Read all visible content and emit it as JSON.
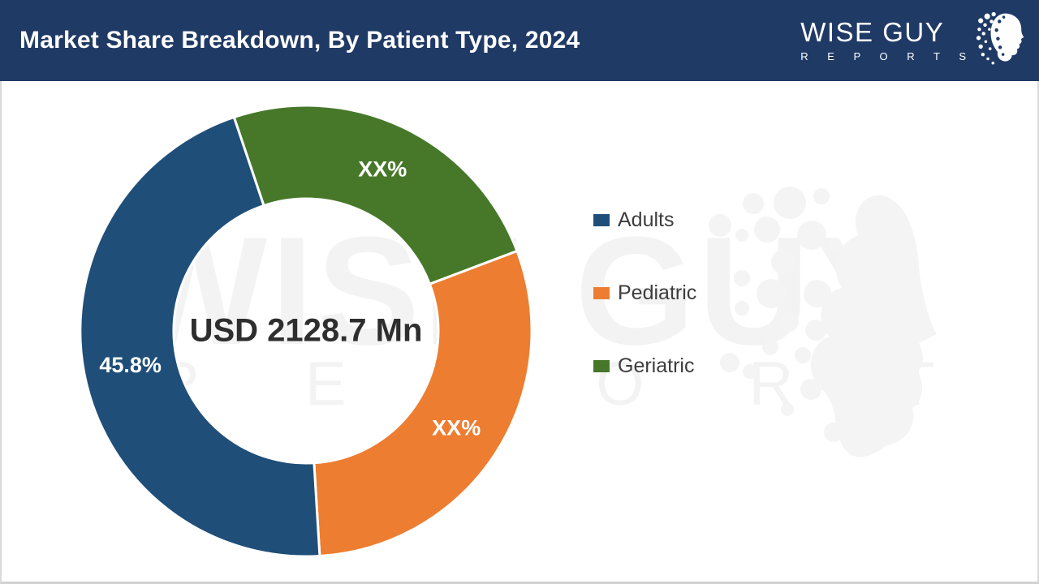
{
  "header": {
    "title": "Market Share Breakdown, By Patient Type, 2024",
    "background": "#203A66",
    "logo": {
      "line1": "WISE GUY",
      "line2": "R E P O R T S"
    }
  },
  "watermark": {
    "line1": "WISE GUY",
    "line2": "R E P O R T S"
  },
  "chart_data": {
    "type": "pie",
    "subtype": "donut",
    "title": "Market Share Breakdown, By Patient Type, 2024",
    "center_label": "USD 2128.7 Mn",
    "start_angle_deg": 108.6,
    "direction": "clockwise",
    "outer_radius_px": 278,
    "inner_radius_px": 163,
    "slices": [
      {
        "label": "Geriatric",
        "value_pct": 24.4,
        "display_label": "XX%",
        "color": "#47782A"
      },
      {
        "label": "Pediatric",
        "value_pct": 29.8,
        "display_label": "XX%",
        "color": "#ED7D31"
      },
      {
        "label": "Adults",
        "value_pct": 45.8,
        "display_label": "45.8%",
        "color": "#1F4E79"
      }
    ],
    "legend": {
      "position": "right",
      "items": [
        {
          "label": "Adults",
          "color": "#1F4E79"
        },
        {
          "label": "Pediatric",
          "color": "#ED7D31"
        },
        {
          "label": "Geriatric",
          "color": "#47782A"
        }
      ]
    }
  }
}
